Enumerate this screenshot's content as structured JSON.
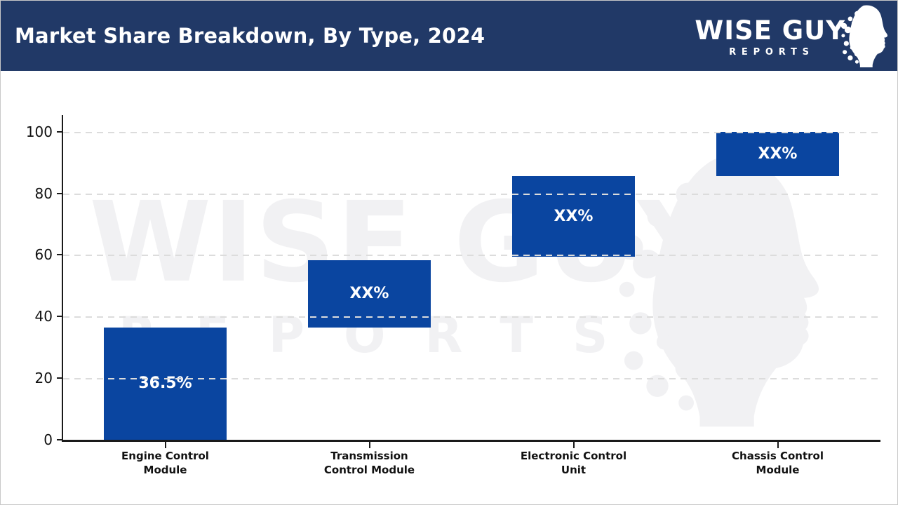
{
  "page": {
    "background": "#ffffff",
    "border_color": "#c9c9c9"
  },
  "header": {
    "background": "#213967",
    "title": "Market Share Breakdown, By Type, 2024",
    "logo": {
      "name": "WISE GUY",
      "tagline": "REPORTS"
    }
  },
  "watermark": {
    "word1": "WISE GUY",
    "word2": "REPORTS"
  },
  "chart_data": {
    "type": "bar",
    "subtype": "waterfall-segments",
    "title": "Market Share Breakdown, By Type, 2024",
    "categories": [
      "Engine Control Module",
      "Transmission Control Module",
      "Electronic Control Unit",
      "Chassis Control Module"
    ],
    "category_label_lines": [
      [
        "Engine Control",
        "Module"
      ],
      [
        "Transmission",
        "Control Module"
      ],
      [
        "Electronic Control",
        "Unit"
      ],
      [
        "Chassis Control",
        "Module"
      ]
    ],
    "segments": [
      {
        "category": "Engine Control Module",
        "start": 0,
        "end": 36.5,
        "label": "36.5%"
      },
      {
        "category": "Transmission Control Module",
        "start": 36.5,
        "end": 58.3,
        "label": "XX%"
      },
      {
        "category": "Electronic Control Unit",
        "start": 59.3,
        "end": 85.5,
        "label": "XX%"
      },
      {
        "category": "Chassis Control Module",
        "start": 85.7,
        "end": 100,
        "label": "XX%"
      }
    ],
    "xlabel": "",
    "ylabel": "",
    "yticks": [
      0,
      20,
      40,
      60,
      80,
      100
    ],
    "ylim": [
      0,
      105.4
    ],
    "bar_color": "#0A45A0",
    "bar_label_color": "#ffffff",
    "grid": "horizontal-dashed",
    "legend_position": "none"
  }
}
